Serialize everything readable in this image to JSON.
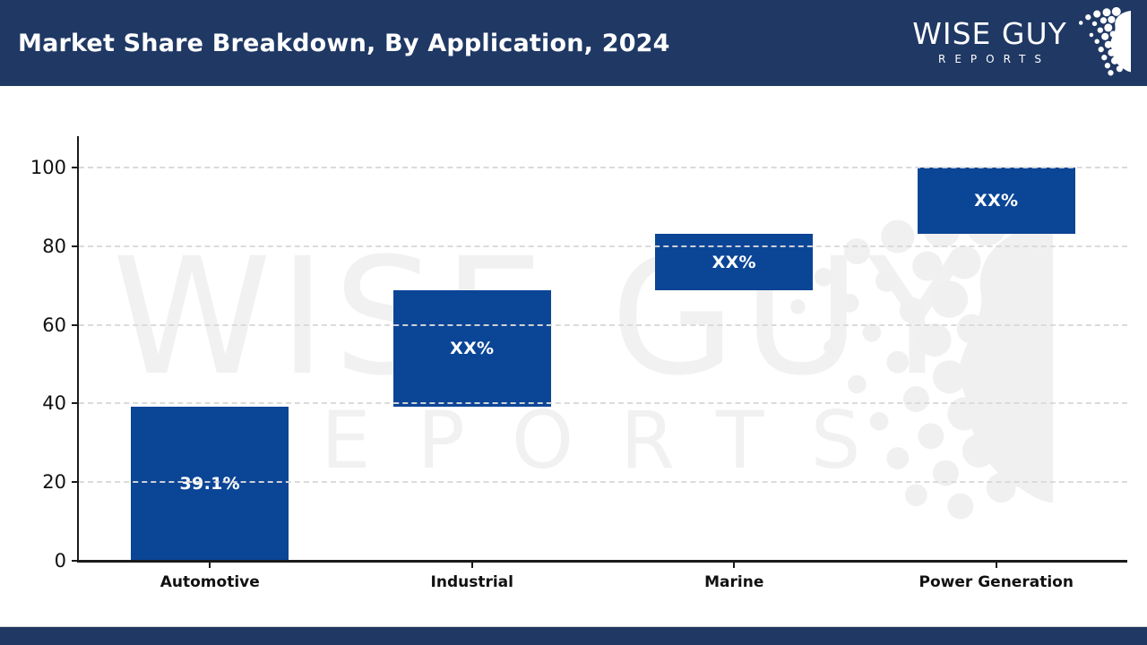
{
  "header": {
    "title": "Market Share Breakdown, By Application, 2024",
    "bg_color": "#1f3864",
    "logo": {
      "line1": "WISE GUY",
      "line2": "REPORTS"
    }
  },
  "watermark": {
    "line1": "WISE GUY",
    "line2": "REPORTS"
  },
  "colors": {
    "bar": "#0b4596",
    "header_bg": "#1f3864",
    "grid": "#d9d9d9",
    "axis": "#1a1a1a",
    "watermark": "#f1f1f1",
    "bar_label": "#ffffff"
  },
  "chart_data": {
    "type": "bar",
    "subtype": "waterfall-floating-bars",
    "title": "Market Share Breakdown, By Application, 2024",
    "categories": [
      "Automotive",
      "Industrial",
      "Marine",
      "Power Generation"
    ],
    "segments": [
      {
        "category": "Automotive",
        "start": 0,
        "end": 39.1,
        "label": "39.1%"
      },
      {
        "category": "Industrial",
        "start": 39.1,
        "end": 68.7,
        "label": "XX%"
      },
      {
        "category": "Marine",
        "start": 68.7,
        "end": 83.1,
        "label": "XX%"
      },
      {
        "category": "Power Generation",
        "start": 83.1,
        "end": 100,
        "label": "XX%"
      }
    ],
    "yticks": [
      0,
      20,
      40,
      60,
      80,
      100
    ],
    "ylim": [
      0,
      108
    ],
    "xlabel": "",
    "ylabel": "",
    "grid": true,
    "grid_style": "dashed",
    "legend": "none"
  }
}
